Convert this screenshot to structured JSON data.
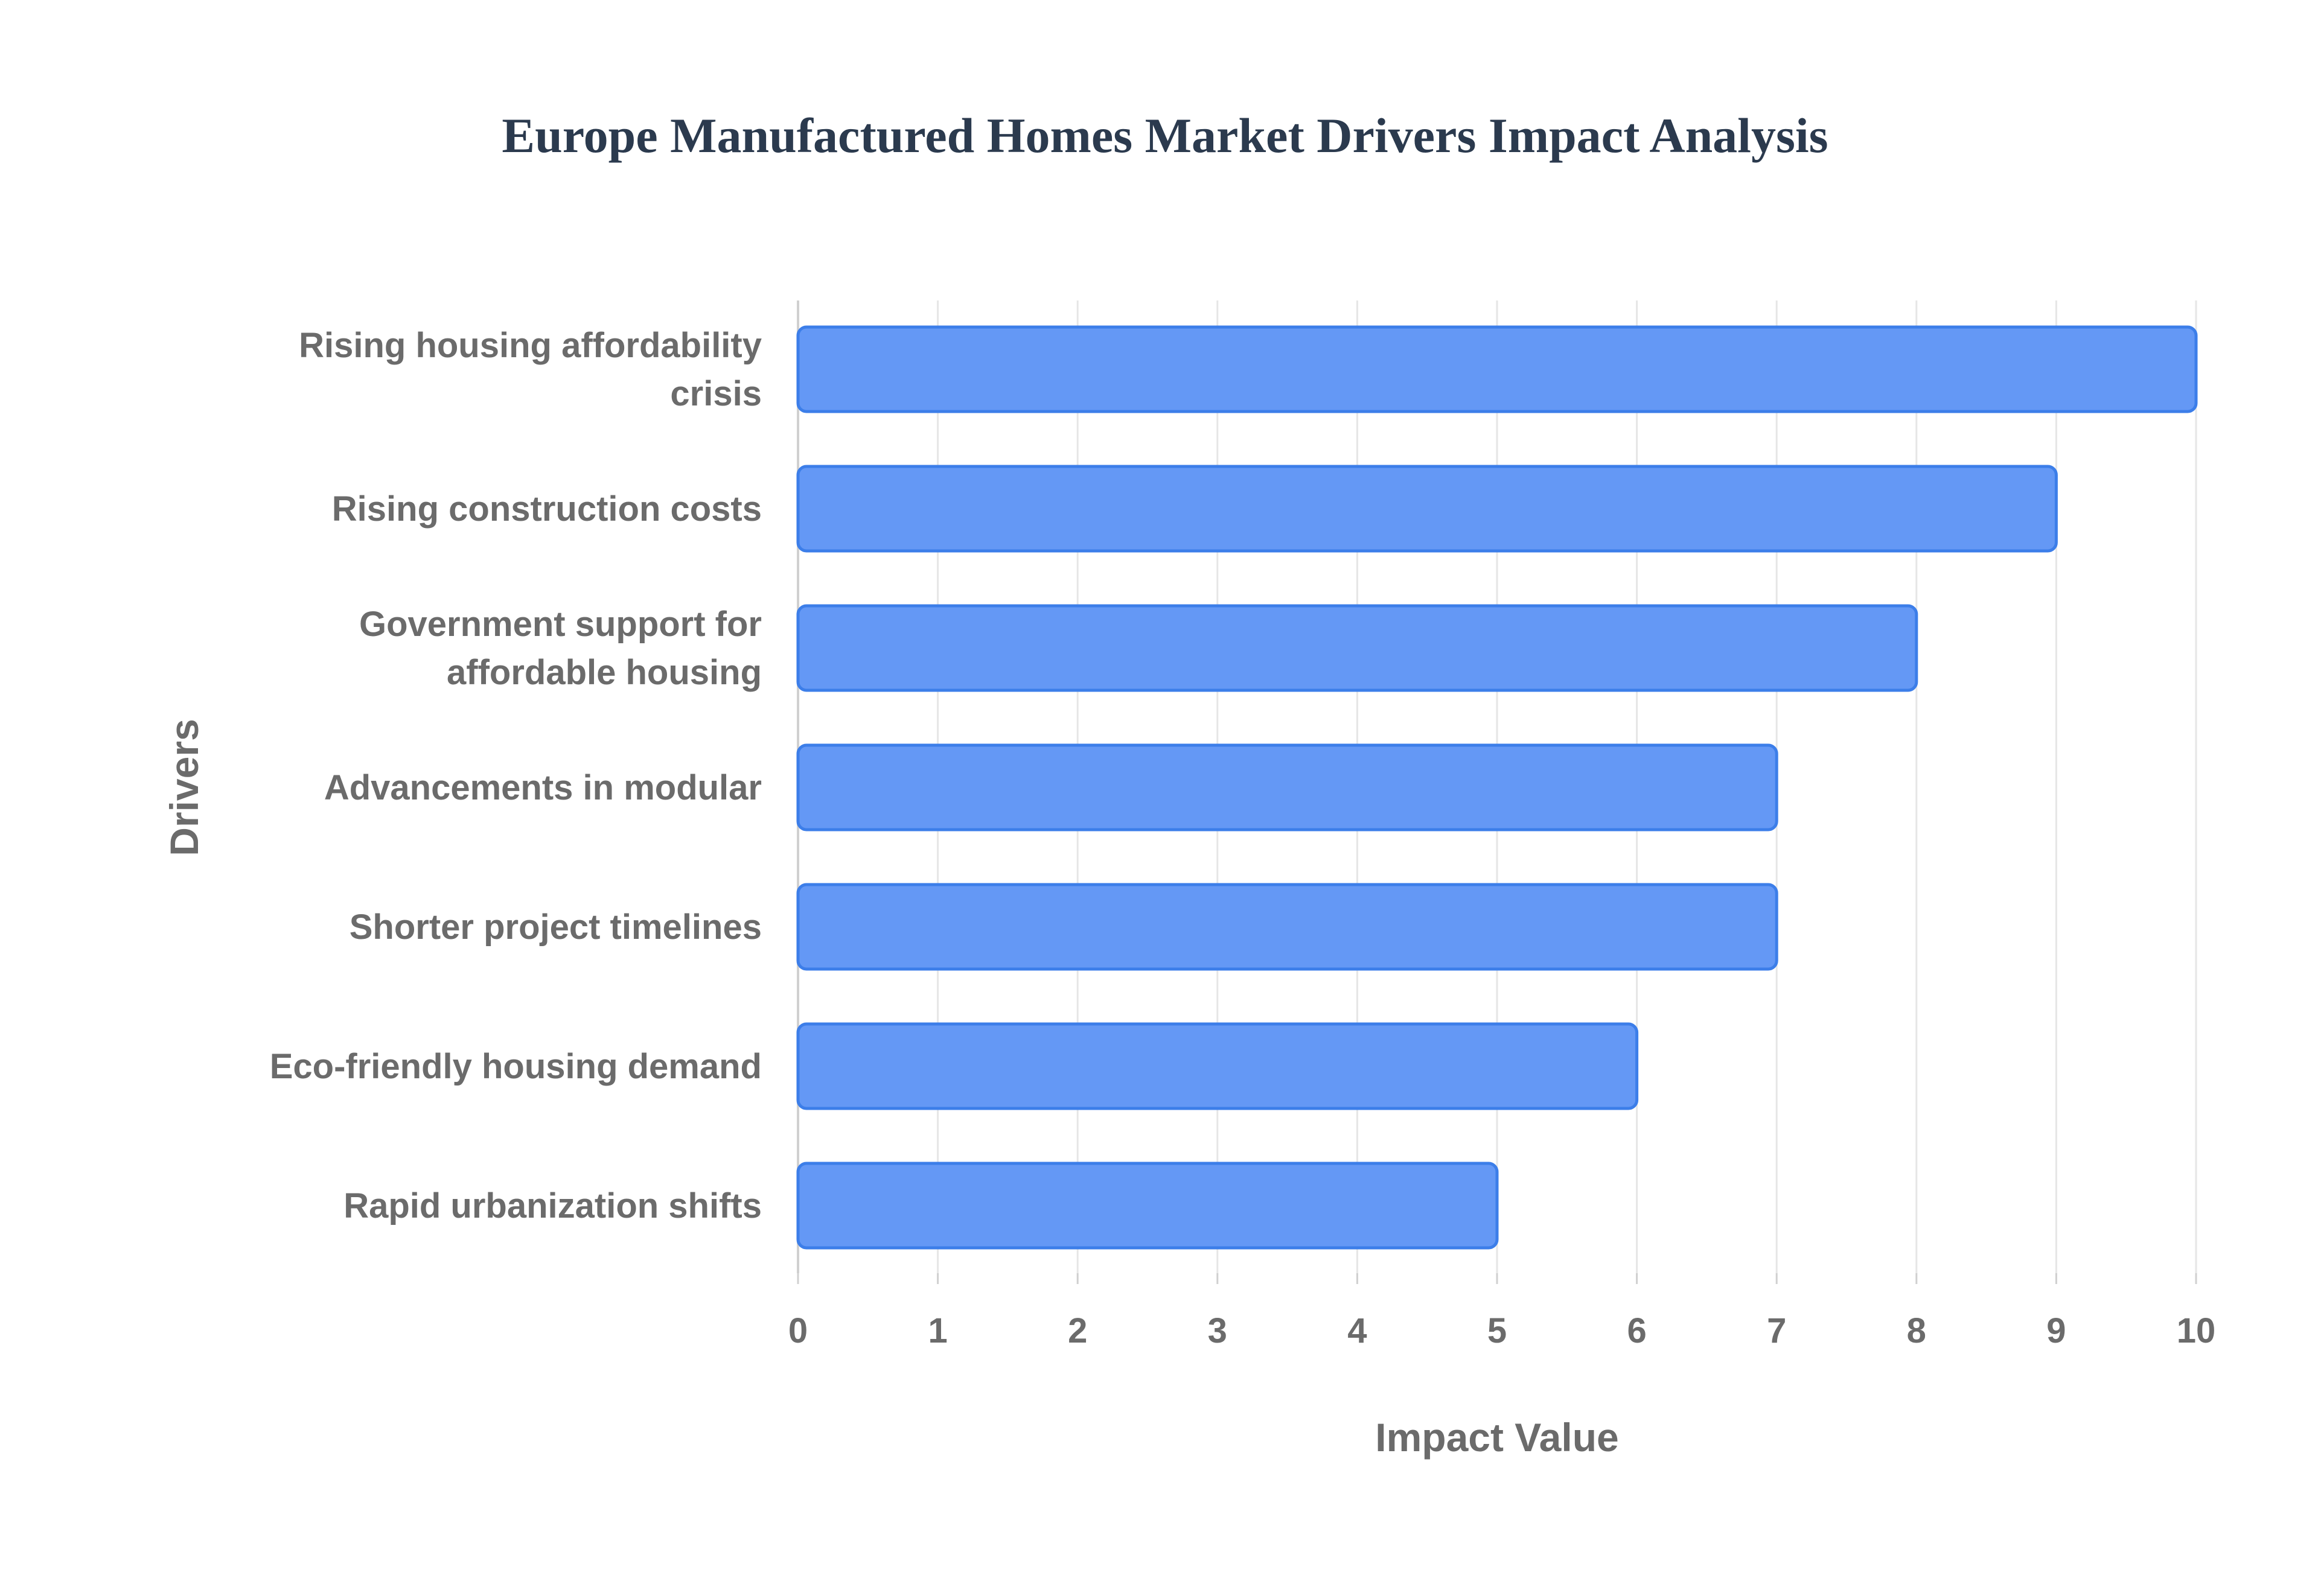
{
  "chart_data": {
    "type": "bar",
    "orientation": "horizontal",
    "title": "Europe Manufactured Homes Market Drivers Impact Analysis",
    "xlabel": "Impact Value",
    "ylabel": "Drivers",
    "categories": [
      [
        "Rising housing affordability",
        "crisis"
      ],
      [
        "Rising construction costs"
      ],
      [
        "Government support for",
        "affordable housing"
      ],
      [
        "Advancements in modular"
      ],
      [
        "Shorter project timelines"
      ],
      [
        "Eco-friendly housing demand"
      ],
      [
        "Rapid urbanization shifts"
      ]
    ],
    "values": [
      10,
      9,
      8,
      7,
      7,
      6,
      5
    ],
    "xlim": [
      0,
      10
    ],
    "xticks": [
      "0",
      "1",
      "2",
      "3",
      "4",
      "5",
      "6",
      "7",
      "8",
      "9",
      "10"
    ],
    "grid": true,
    "legend": "none",
    "colors": {
      "bar_fill": "#6498f5",
      "bar_stroke": "#3c7ee9",
      "title": "#2b3a4e",
      "text": "#6b6b6b",
      "grid": "#e6e6e6",
      "axis": "#d0d0d0"
    }
  }
}
